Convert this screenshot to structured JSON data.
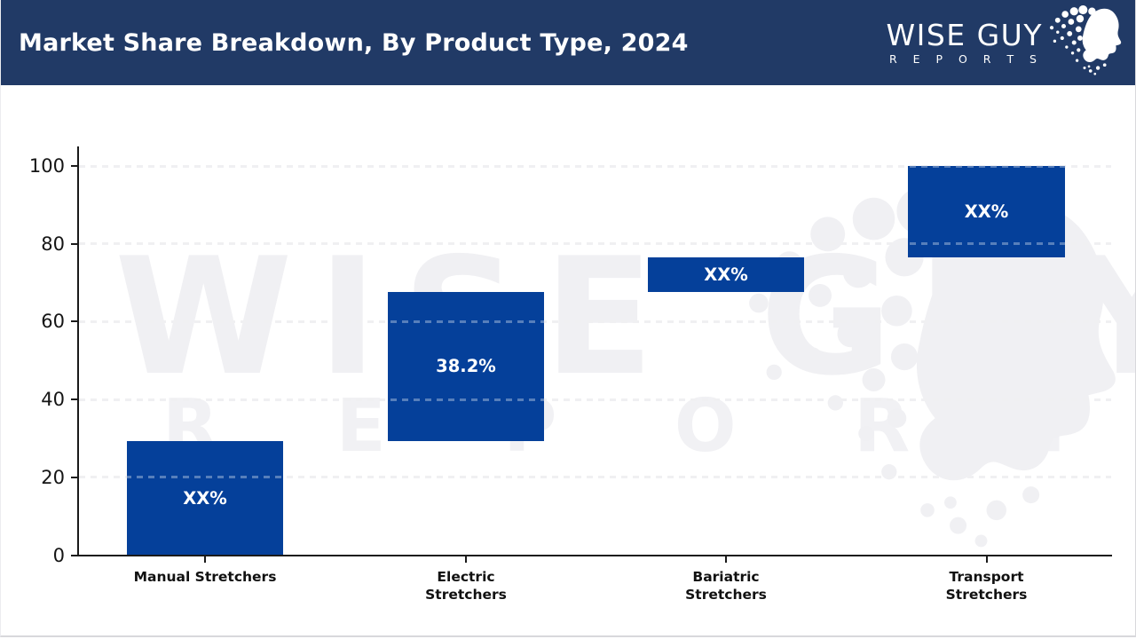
{
  "header": {
    "title": "Market Share Breakdown, By Product Type, 2024",
    "logo": {
      "line1": "WISE GUY",
      "line2": "R E P O R T S"
    }
  },
  "watermark": {
    "line1": "WISE GUY",
    "line2": "R E P O R T S"
  },
  "colors": {
    "header_bg": "#213a66",
    "bar": "#05409a",
    "bar_label": "#ffffff",
    "grid": "#e9e9eb",
    "axis": "#1a1a1a",
    "watermark": "#f0f0f3"
  },
  "chart_data": {
    "type": "bar",
    "variant": "waterfall-floating-bars",
    "title": "Market Share Breakdown, By Product Type, 2024",
    "xlabel": "",
    "ylabel": "",
    "legend": null,
    "grid": "horizontal-dashed",
    "yticks": [
      0,
      20,
      40,
      60,
      80,
      100
    ],
    "ylim": [
      0,
      105
    ],
    "categories": [
      "Manual Stretchers",
      "Electric Stretchers",
      "Bariatric Stretchers",
      "Transport Stretchers"
    ],
    "category_label_lines": [
      [
        "Manual Stretchers"
      ],
      [
        "Electric",
        "Stretchers"
      ],
      [
        "Bariatric",
        "Stretchers"
      ],
      [
        "Transport",
        "Stretchers"
      ]
    ],
    "segments": [
      {
        "category": "Manual Stretchers",
        "start": 0,
        "end": 29.4,
        "value_est": 29.4,
        "label": "XX%"
      },
      {
        "category": "Electric Stretchers",
        "start": 29.4,
        "end": 67.6,
        "value_est": 38.2,
        "label": "38.2%"
      },
      {
        "category": "Bariatric Stretchers",
        "start": 67.6,
        "end": 76.5,
        "value_est": 8.9,
        "label": "XX%"
      },
      {
        "category": "Transport Stretchers",
        "start": 76.5,
        "end": 100,
        "value_est": 23.5,
        "label": "XX%"
      }
    ]
  }
}
